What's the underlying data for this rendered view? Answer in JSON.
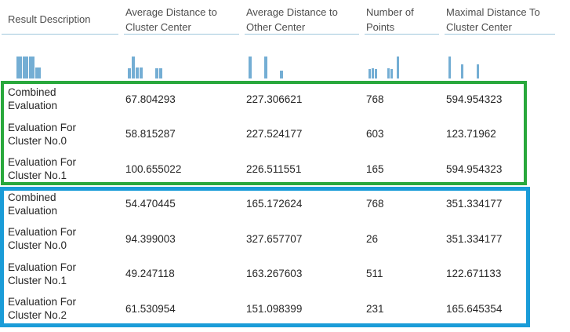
{
  "colors": {
    "sparkline_bar": "#74aed4",
    "header_underline": "#9ec7db",
    "green_box": "#29a83c",
    "blue_box": "#1a9cd8"
  },
  "table": {
    "columns": [
      {
        "label": "Result Description",
        "sparkline": [
          1,
          1,
          1,
          0.5
        ]
      },
      {
        "label": "Average Distance to Cluster Center",
        "sparkline": [
          0.45,
          1,
          0.5,
          0.5,
          0,
          0,
          0,
          0.45,
          0.45
        ]
      },
      {
        "label": "Average Distance to Other Center",
        "sparkline": [
          1,
          0,
          0,
          0,
          1,
          0,
          0,
          0,
          0.35
        ]
      },
      {
        "label": "Number of Points",
        "sparkline": [
          0.42,
          0.46,
          0.42,
          0,
          0,
          0,
          0.46,
          0.42,
          0,
          1
        ]
      },
      {
        "label": "Maximal Distance To Cluster Center",
        "sparkline": [
          1,
          0,
          0,
          0,
          0.65,
          0,
          0,
          0,
          0,
          0.65
        ]
      }
    ],
    "groups": [
      {
        "highlight": "green",
        "rows": [
          {
            "cells": [
              "Combined Evaluation",
              "67.804293",
              "227.306621",
              "768",
              "594.954323"
            ]
          },
          {
            "cells": [
              "Evaluation For Cluster No.0",
              "58.815287",
              "227.524177",
              "603",
              "123.71962"
            ]
          },
          {
            "cells": [
              "Evaluation For Cluster No.1",
              "100.655022",
              "226.511551",
              "165",
              "594.954323"
            ]
          }
        ]
      },
      {
        "highlight": "blue",
        "rows": [
          {
            "cells": [
              "Combined Evaluation",
              "54.470445",
              "165.172624",
              "768",
              "351.334177"
            ]
          },
          {
            "cells": [
              "Evaluation For Cluster No.0",
              "94.399003",
              "327.657707",
              "26",
              "351.334177"
            ]
          },
          {
            "cells": [
              "Evaluation For Cluster No.1",
              "49.247118",
              "163.267603",
              "511",
              "122.671133"
            ]
          },
          {
            "cells": [
              "Evaluation For Cluster No.2",
              "61.530954",
              "151.098399",
              "231",
              "165.645354"
            ]
          }
        ]
      }
    ]
  }
}
